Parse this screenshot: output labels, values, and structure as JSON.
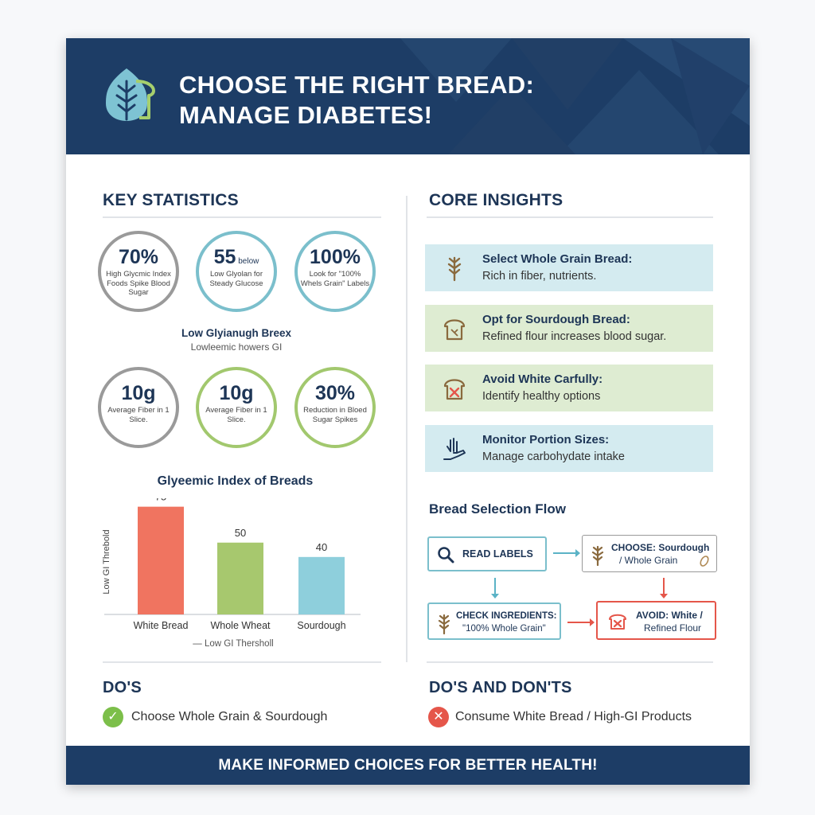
{
  "header": {
    "title_line1": "CHOOSE THE RIGHT BREAD:",
    "title_line2": "MANAGE DIABETES!",
    "logo_icon": "leaf-bread-icon"
  },
  "key_statistics": {
    "title": "KEY STATISTICS",
    "stats": [
      {
        "value": "70%",
        "suffix": "",
        "desc": "High Glycmic Index Foods Spike Blood Sugar",
        "color": "#9a9a9a"
      },
      {
        "value": "55",
        "suffix": " below",
        "desc": "Low Glyolan for Steady Glucose",
        "color": "#7bbfcc"
      },
      {
        "value": "100%",
        "suffix": "",
        "desc": "Look for \"100% Whels Grain\" Labels",
        "color": "#7bbfcc"
      },
      {
        "value": "10g",
        "suffix": "",
        "desc": "Average Fiber in 1 Slice.",
        "color": "#9a9a9a"
      },
      {
        "value": "10g",
        "suffix": "",
        "desc": "Average Fiber in 1 Slice.",
        "color": "#a2c86e"
      },
      {
        "value": "30%",
        "suffix": "",
        "desc": "Reduction in Bloed Sugar Spikes",
        "color": "#a2c86e"
      }
    ],
    "mid_caption_title": "Low Glyianugh Breex",
    "mid_caption_sub": "Lowleemic howers GI"
  },
  "chart_data": {
    "type": "bar",
    "title": "Glyeemic Index of Breads",
    "categories": [
      "White Bread",
      "Whole Wheat",
      "Sourdough"
    ],
    "values": [
      75,
      50,
      40
    ],
    "colors": [
      "#f07460",
      "#a7c86e",
      "#8ecfdc"
    ],
    "ylabel": "Low GI Threbold",
    "legend": "— Low GI Thersholl",
    "ylim": [
      0,
      85
    ]
  },
  "core_insights": {
    "title": "CORE INSIGHTS",
    "items": [
      {
        "heading": "Select Whole Grain Bread:",
        "body": "Rich in fiber, nutrients.",
        "bg": "#d4ebf0",
        "icon": "wheat-icon"
      },
      {
        "heading": "Opt for Sourdough Bread:",
        "body": "Refined flour increases blood sugar.",
        "bg": "#deecd2",
        "icon": "bread-slice-icon"
      },
      {
        "heading": "Avoid White Carfully:",
        "body": "Identify healthy options",
        "bg": "#deecd2",
        "icon": "bread-cross-icon"
      },
      {
        "heading": "Monitor Portion Sizes:",
        "body": "Manage carbohydate intake",
        "bg": "#d4ebf0",
        "icon": "hand-portion-icon"
      }
    ]
  },
  "flow": {
    "title": "Bread Selection Flow",
    "read_labels": "READ LABELS",
    "choose_line1": "CHOOSE: Sourdough",
    "choose_line2": "/ Whole Grain",
    "check_line1": "CHECK INGREDIENTS:",
    "check_line2": "\"100% Whole Grain\"",
    "avoid_line1": "AVOID: White /",
    "avoid_line2": "Refined Flour"
  },
  "dos": {
    "title": "DO'S",
    "item": "Choose Whole Grain & Sourdough"
  },
  "donts": {
    "title": "DO'S AND DON'TS",
    "item": "Consume White Bread / High-GI Products"
  },
  "footer": {
    "text": "MAKE INFORMED CHOICES FOR BETTER HEALTH!"
  }
}
